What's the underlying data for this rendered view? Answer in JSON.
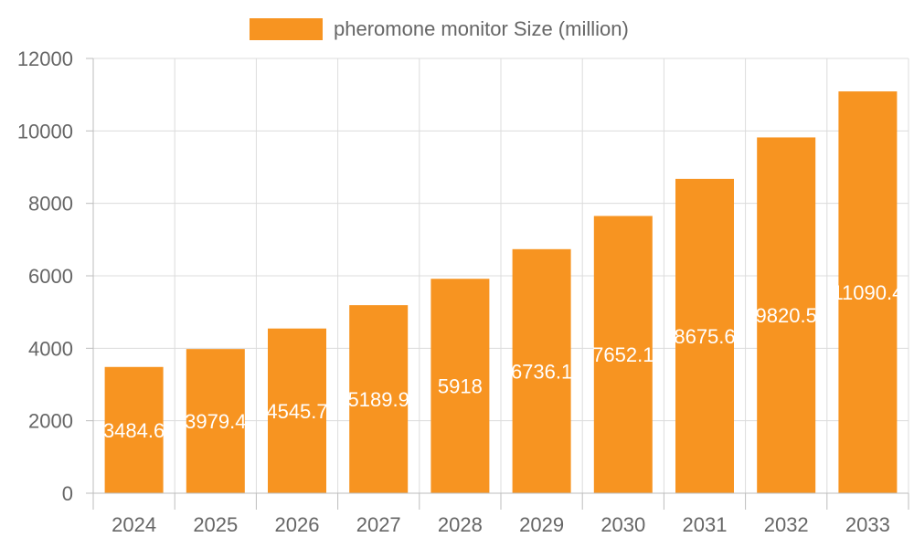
{
  "colors": {
    "bar": "#f79421"
  },
  "chart_data": {
    "type": "bar",
    "categories": [
      "2024",
      "2025",
      "2026",
      "2027",
      "2028",
      "2029",
      "2030",
      "2031",
      "2032",
      "2033"
    ],
    "series": [
      {
        "name": "pheromone monitor Size (million)",
        "values": [
          3484.6,
          3979.4,
          4545.7,
          5189.9,
          5918,
          6736.1,
          7652.1,
          8675.6,
          9820.5,
          11090.4
        ]
      }
    ],
    "data_labels": [
      "3484.6",
      "3979.4",
      "4545.7",
      "5189.9",
      "5918",
      "6736.1",
      "7652.1",
      "8675.6",
      "9820.5",
      "11090.4"
    ],
    "ylim": [
      0,
      12000
    ],
    "yticks": [
      "0",
      "2000",
      "4000",
      "6000",
      "8000",
      "10000",
      "12000"
    ],
    "grid": true,
    "legend_position": "top-center",
    "title": "",
    "xlabel": "",
    "ylabel": ""
  }
}
